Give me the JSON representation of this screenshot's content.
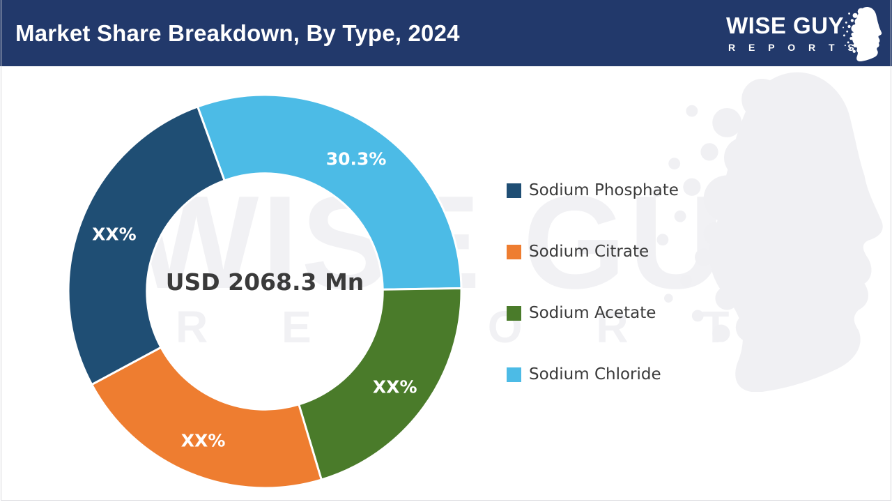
{
  "header": {
    "title": "Market Share Breakdown, By Type, 2024",
    "logo": {
      "name_line": "WISE GUY",
      "reports_line": "R E P O R T S"
    }
  },
  "watermark": {
    "name_line": "WISE GUY",
    "reports_line": "R E P O R T S"
  },
  "colors": {
    "header_bg": "#22396B",
    "sodium_phosphate": "#1F4E74",
    "sodium_citrate": "#EE7D30",
    "sodium_acetate": "#4A7B2A",
    "sodium_chloride": "#4CBBE6",
    "center_text": "#3A3A3A",
    "percent_text": "#FFFFFF",
    "watermark_gray": "#F1F1F4"
  },
  "chart_data": {
    "type": "pie",
    "subtype": "donut",
    "title": "Market Share Breakdown, By Type, 2024",
    "center_label": "USD 2068.3 Mn",
    "start_angle_deg": -20,
    "direction": "clockwise",
    "inner_radius_ratio": 0.6,
    "slices": [
      {
        "name": "Sodium Chloride",
        "value_pct": 30.3,
        "display_label": "30.3%",
        "color": "#4CBBE6"
      },
      {
        "name": "Sodium Acetate",
        "value_pct": 20.6,
        "display_label": "XX%",
        "color": "#4A7B2A"
      },
      {
        "name": "Sodium Citrate",
        "value_pct": 21.8,
        "display_label": "XX%",
        "color": "#EE7D30"
      },
      {
        "name": "Sodium Phosphate",
        "value_pct": 27.3,
        "display_label": "XX%",
        "color": "#1F4E74"
      }
    ],
    "legend_position": "right",
    "legend_items": [
      {
        "label": "Sodium Phosphate",
        "color": "#1F4E74"
      },
      {
        "label": "Sodium Citrate",
        "color": "#EE7D30"
      },
      {
        "label": "Sodium Acetate",
        "color": "#4A7B2A"
      },
      {
        "label": "Sodium Chloride",
        "color": "#4CBBE6"
      }
    ]
  }
}
